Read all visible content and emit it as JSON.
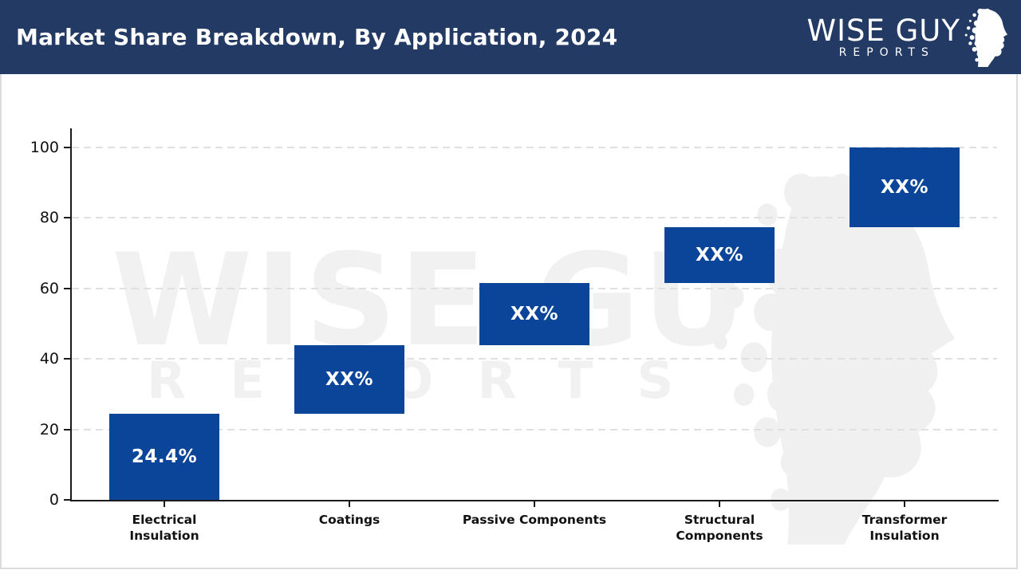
{
  "header": {
    "title": "Market Share Breakdown, By Application, 2024",
    "logo": {
      "line1": "WISE GUY",
      "line2": "REPORTS"
    }
  },
  "watermark": {
    "line1": "WISE GUY",
    "line2": "REPORTS"
  },
  "chart_data": {
    "type": "bar",
    "subtype": "waterfall",
    "title": "Market Share Breakdown, By Application, 2024",
    "categories": [
      "Electrical Insulation",
      "Coatings",
      "Passive Components",
      "Structural Components",
      "Transformer Insulation"
    ],
    "category_lines": [
      [
        "Electrical",
        "Insulation"
      ],
      [
        "Coatings"
      ],
      [
        "Passive Components"
      ],
      [
        "Structural",
        "Components"
      ],
      [
        "Transformer",
        "Insulation"
      ]
    ],
    "series": [
      {
        "name": "Market Share (%)",
        "segments": [
          {
            "category": "Electrical Insulation",
            "from": 0,
            "to": 24.4,
            "label": "24.4%"
          },
          {
            "category": "Coatings",
            "from": 24.4,
            "to": 44,
            "label": "XX%"
          },
          {
            "category": "Passive Components",
            "from": 44,
            "to": 61.5,
            "label": "XX%"
          },
          {
            "category": "Structural Components",
            "from": 61.5,
            "to": 77.5,
            "label": "XX%"
          },
          {
            "category": "Transformer Insulation",
            "from": 77.5,
            "to": 100,
            "label": "XX%"
          }
        ]
      }
    ],
    "xlabel": "",
    "ylabel": "",
    "ylim": [
      0,
      105
    ],
    "yticks": [
      0,
      20,
      40,
      60,
      80,
      100
    ],
    "grid": "horizontal-dashed",
    "legend": "none",
    "colors": {
      "bar": "#0b4599",
      "bar_label": "#ffffff",
      "axis": "#1a1a1a",
      "gridline": "#e0e0e0",
      "header_bg": "#233a64",
      "header_text": "#ffffff",
      "watermark": "#f1f1f1"
    }
  }
}
